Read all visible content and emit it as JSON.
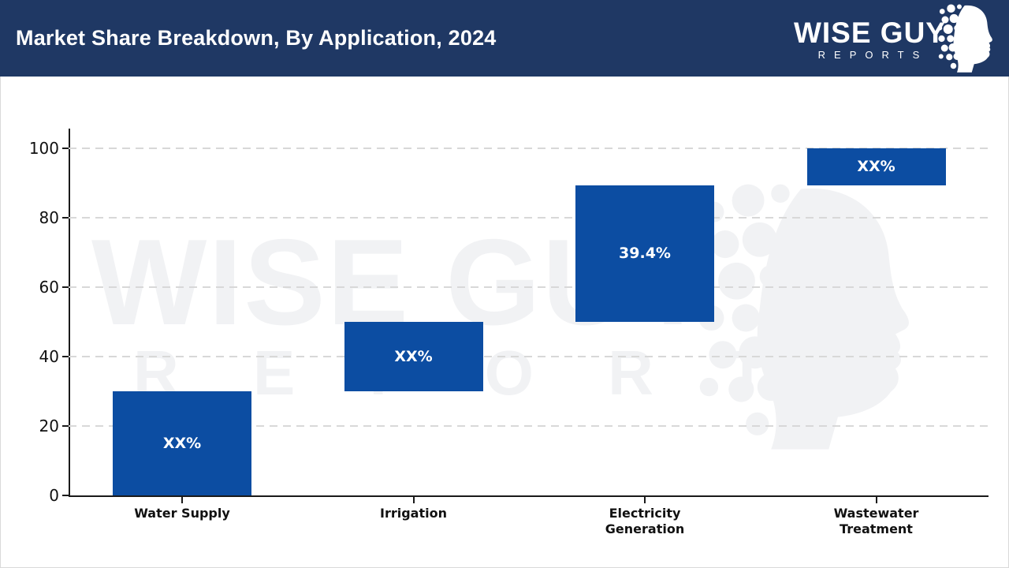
{
  "header": {
    "title": "Market Share Breakdown, By Application, 2024",
    "logo": {
      "line1": "WISE GUY",
      "line2": "REPORTS"
    }
  },
  "watermark": {
    "line1": "WISE GUY",
    "line2": "R E P O R T S"
  },
  "colors": {
    "header_bg": "#1f3864",
    "bar": "#0c4da2",
    "bar_label": "#ffffff",
    "grid": "#d8d8d8",
    "axis": "#1a1a1a",
    "watermark": "#f1f2f4"
  },
  "chart_data": {
    "type": "bar",
    "subtype": "floating-waterfall",
    "title": "Market Share Breakdown, By Application, 2024",
    "categories": [
      "Water Supply",
      "Irrigation",
      "Electricity Generation",
      "Wastewater Treatment"
    ],
    "tick_labels": [
      "Water Supply",
      "Irrigation",
      "Electricity\nGeneration",
      "Wastewater\nTreatment"
    ],
    "segments": [
      {
        "category": "Water Supply",
        "start": 0,
        "end": 30,
        "label": "XX%"
      },
      {
        "category": "Irrigation",
        "start": 30,
        "end": 50,
        "label": "XX%"
      },
      {
        "category": "Electricity Generation",
        "start": 50,
        "end": 89.4,
        "label": "39.4%"
      },
      {
        "category": "Wastewater Treatment",
        "start": 89.4,
        "end": 100,
        "label": "XX%"
      }
    ],
    "ylim": [
      0,
      100
    ],
    "yticks": [
      0,
      20,
      40,
      60,
      80,
      100
    ],
    "grid": "horizontal-dashed",
    "legend": "none",
    "bar_color": "#0c4da2",
    "bar_label_color": "#ffffff"
  }
}
